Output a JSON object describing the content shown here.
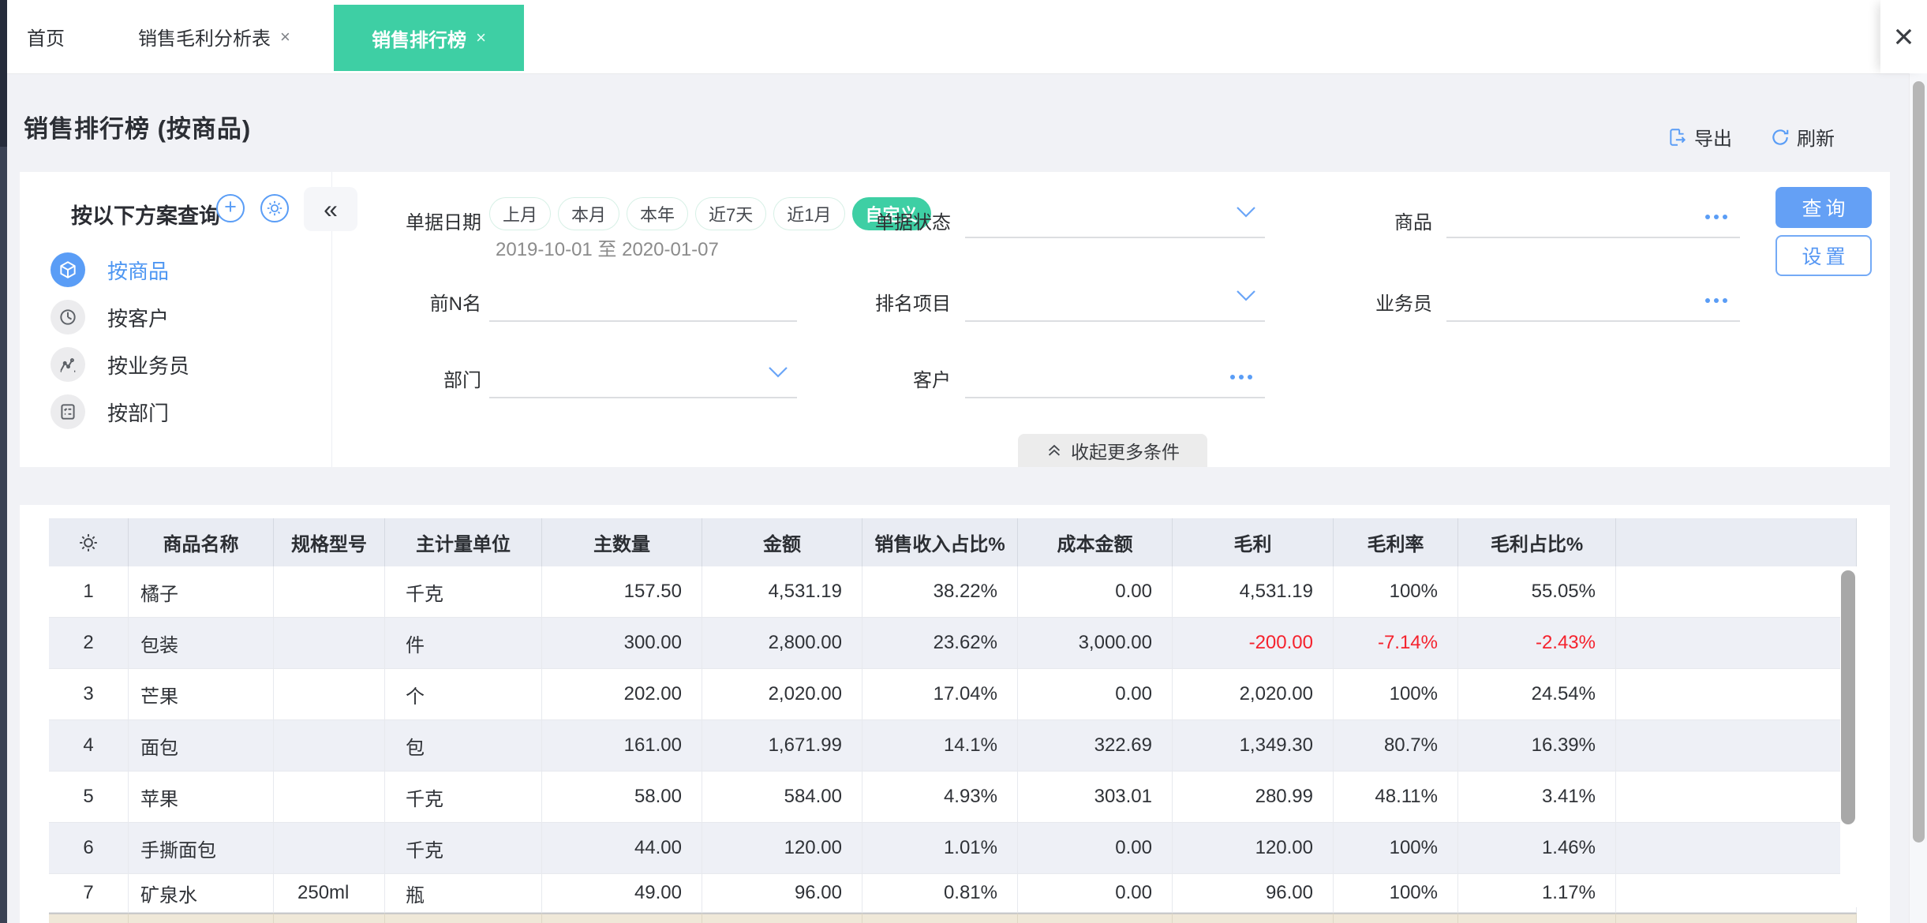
{
  "colors": {
    "accent_green": "#3ecfa4",
    "accent_blue": "#64a0f5",
    "negative_red": "#f5222d",
    "summary_beige": "#efe8d8"
  },
  "tabs": {
    "home": "首页",
    "report": "销售毛利分析表",
    "ranking": "销售排行榜"
  },
  "titlebar": {
    "title": "销售排行榜 (按商品)",
    "export": "导出",
    "refresh": "刷新"
  },
  "sidebar": {
    "title": "按以下方案查询",
    "items": [
      {
        "label": "按商品",
        "icon": "cube-icon",
        "active": true
      },
      {
        "label": "按客户",
        "icon": "clock-icon",
        "active": false
      },
      {
        "label": "按业务员",
        "icon": "chart-icon",
        "active": false
      },
      {
        "label": "按部门",
        "icon": "checklist-icon",
        "active": false
      }
    ]
  },
  "filters": {
    "date_label": "单据日期",
    "quick_ranges": [
      "上月",
      "本月",
      "本年",
      "近7天",
      "近1月"
    ],
    "custom_range": "自定义",
    "date_range": "2019-10-01 至 2020-01-07",
    "status_label": "单据状态",
    "product_label": "商品",
    "top_n_label": "前N名",
    "rank_item_label": "排名项目",
    "salesman_label": "业务员",
    "department_label": "部门",
    "customer_label": "客户",
    "collapse_label": "收起更多条件",
    "query_button": "查询",
    "settings_button": "设置"
  },
  "table": {
    "headers": [
      "商品名称",
      "规格型号",
      "主计量单位",
      "主数量",
      "金额",
      "销售收入占比%",
      "成本金额",
      "毛利",
      "毛利率",
      "毛利占比%"
    ],
    "rows": [
      {
        "no": "1",
        "name": "橘子",
        "spec": "",
        "unit": "千克",
        "qty": "157.50",
        "amount": "4,531.19",
        "revenue_pct": "38.22%",
        "cost": "0.00",
        "profit": "4,531.19",
        "margin": "100%",
        "profit_pct": "55.05%"
      },
      {
        "no": "2",
        "name": "包装",
        "spec": "",
        "unit": "件",
        "qty": "300.00",
        "amount": "2,800.00",
        "revenue_pct": "23.62%",
        "cost": "3,000.00",
        "profit": "-200.00",
        "margin": "-7.14%",
        "profit_pct": "-2.43%"
      },
      {
        "no": "3",
        "name": "芒果",
        "spec": "",
        "unit": "个",
        "qty": "202.00",
        "amount": "2,020.00",
        "revenue_pct": "17.04%",
        "cost": "0.00",
        "profit": "2,020.00",
        "margin": "100%",
        "profit_pct": "24.54%"
      },
      {
        "no": "4",
        "name": "面包",
        "spec": "",
        "unit": "包",
        "qty": "161.00",
        "amount": "1,671.99",
        "revenue_pct": "14.1%",
        "cost": "322.69",
        "profit": "1,349.30",
        "margin": "80.7%",
        "profit_pct": "16.39%"
      },
      {
        "no": "5",
        "name": "苹果",
        "spec": "",
        "unit": "千克",
        "qty": "58.00",
        "amount": "584.00",
        "revenue_pct": "4.93%",
        "cost": "303.01",
        "profit": "280.99",
        "margin": "48.11%",
        "profit_pct": "3.41%"
      },
      {
        "no": "6",
        "name": "手撕面包",
        "spec": "",
        "unit": "千克",
        "qty": "44.00",
        "amount": "120.00",
        "revenue_pct": "1.01%",
        "cost": "0.00",
        "profit": "120.00",
        "margin": "100%",
        "profit_pct": "1.46%"
      },
      {
        "no": "7",
        "name": "矿泉水",
        "spec": "250ml",
        "unit": "瓶",
        "qty": "49.00",
        "amount": "96.00",
        "revenue_pct": "0.81%",
        "cost": "0.00",
        "profit": "96.00",
        "margin": "100%",
        "profit_pct": "1.17%"
      }
    ]
  }
}
